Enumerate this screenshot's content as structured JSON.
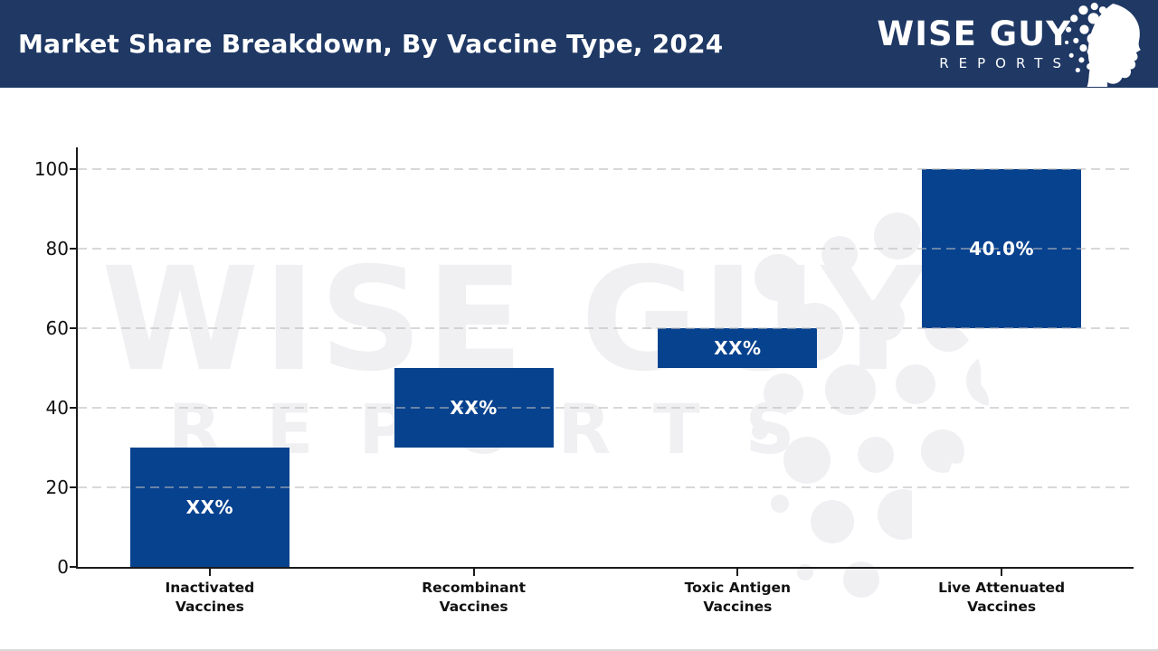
{
  "header": {
    "title": "Market Share Breakdown, By Vaccine Type, 2024",
    "logo": {
      "line1": "WISE GUY",
      "line2": "REPORTS"
    }
  },
  "watermark": {
    "line1": "WISE GUY",
    "line2": "REPORTS"
  },
  "chart_data": {
    "type": "bar",
    "subtype": "waterfall",
    "title": "Market Share Breakdown, By Vaccine Type, 2024",
    "xlabel": "",
    "ylabel": "",
    "ylim": [
      0,
      105
    ],
    "yticks": [
      0,
      20,
      40,
      60,
      80,
      100
    ],
    "grid": "horizontal-dashed-above-bars",
    "legend": "none",
    "categories": [
      "Inactivated\nVaccines",
      "Recombinant\nVaccines",
      "Toxic Antigen\nVaccines",
      "Live Attenuated\nVaccines"
    ],
    "segments": [
      {
        "category": "Inactivated Vaccines",
        "start": 0,
        "end": 30,
        "value_label": "XX%"
      },
      {
        "category": "Recombinant Vaccines",
        "start": 30,
        "end": 50,
        "value_label": "XX%"
      },
      {
        "category": "Toxic Antigen Vaccines",
        "start": 50,
        "end": 60,
        "value_label": "XX%"
      },
      {
        "category": "Live Attenuated Vaccines",
        "start": 60,
        "end": 100,
        "value_label": "40.0%"
      }
    ]
  },
  "colors": {
    "header_bg": "#1f3864",
    "bar": "#07428f",
    "bar_label": "#ffffff",
    "axis": "#1a1a1a",
    "grid": "rgba(185,185,185,0.55)",
    "watermark": "#f0f0f3",
    "bottom_rule": "#d9d9d9"
  }
}
